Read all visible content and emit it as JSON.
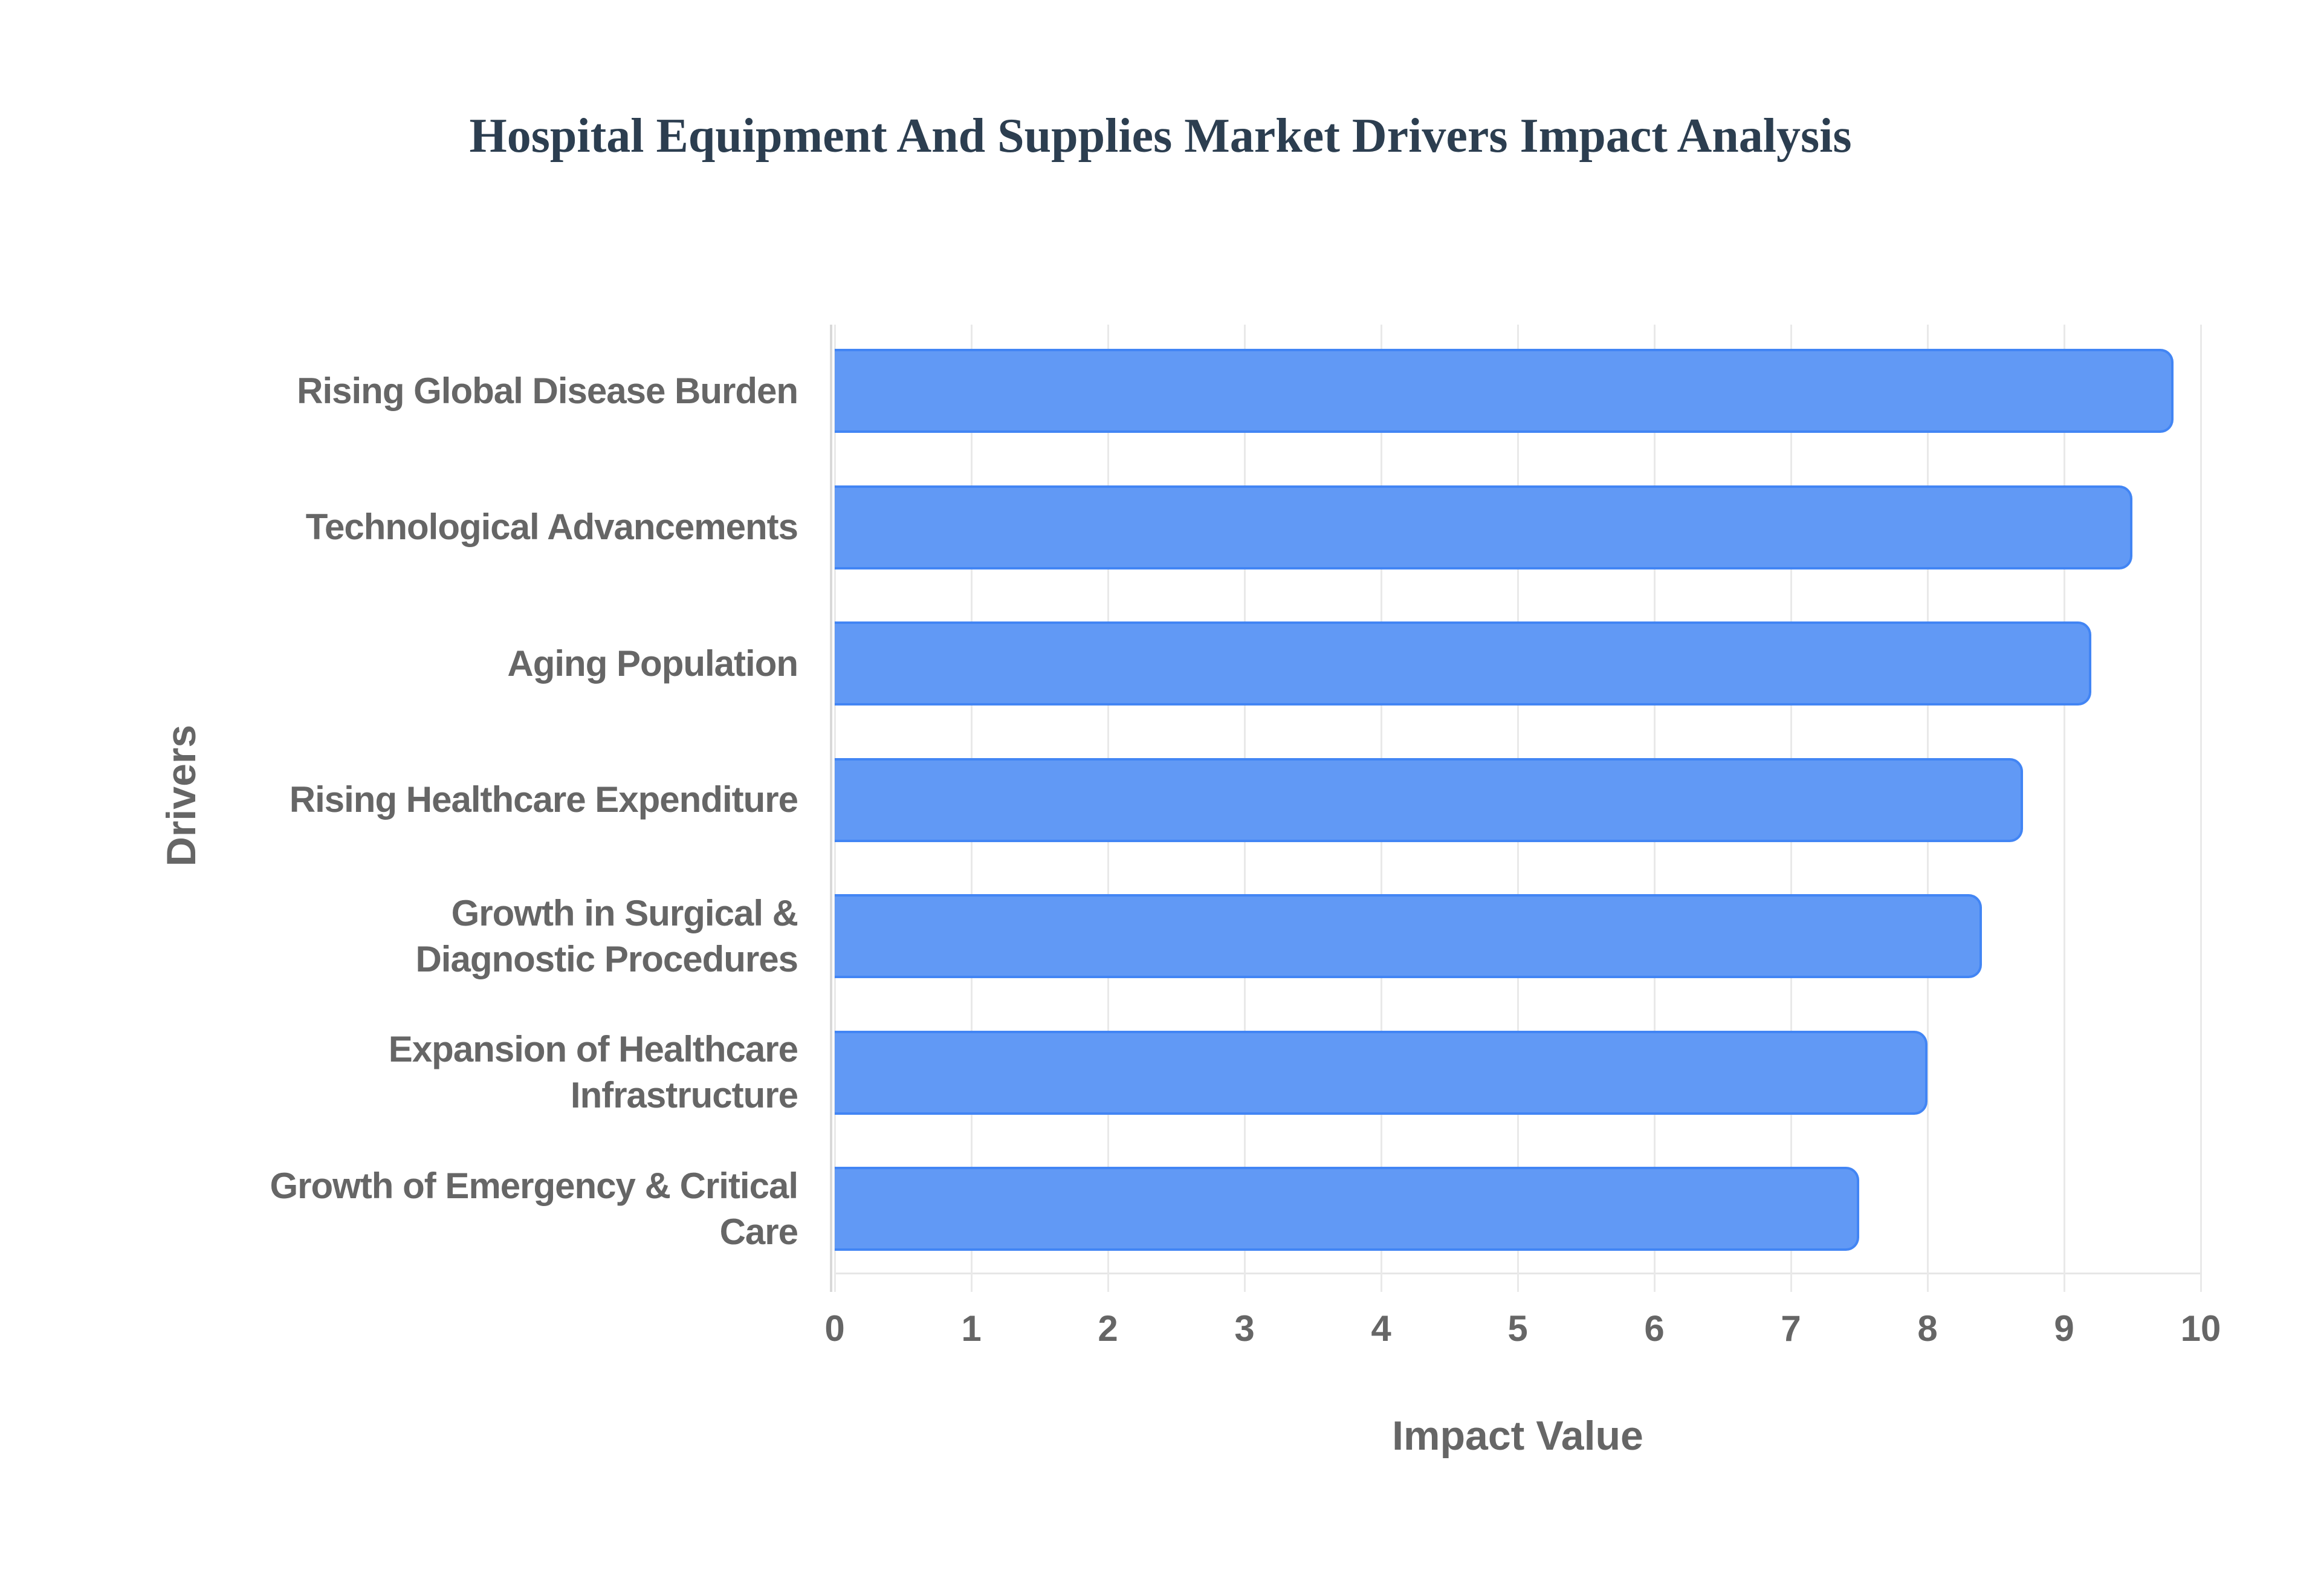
{
  "chart_data": {
    "type": "bar",
    "orientation": "horizontal",
    "title": "Hospital Equipment And Supplies Market Drivers Impact Analysis",
    "xlabel": "Impact Value",
    "ylabel": "Drivers",
    "xlim": [
      0,
      10
    ],
    "xticks": [
      "0",
      "1",
      "2",
      "3",
      "4",
      "5",
      "6",
      "7",
      "8",
      "9",
      "10"
    ],
    "grid": true,
    "legend": null,
    "categories": [
      "Rising Global Disease Burden",
      "Technological Advancements",
      "Aging Population",
      "Rising Healthcare Expenditure",
      "Growth in Surgical & Diagnostic Procedures",
      "Expansion of Healthcare Infrastructure",
      "Growth of Emergency & Critical Care"
    ],
    "category_lines": [
      [
        "Rising Global Disease Burden"
      ],
      [
        "Technological Advancements"
      ],
      [
        "Aging Population"
      ],
      [
        "Rising Healthcare Expenditure"
      ],
      [
        "Growth in Surgical &",
        "Diagnostic Procedures"
      ],
      [
        "Expansion of Healthcare",
        "Infrastructure"
      ],
      [
        "Growth of Emergency & Critical",
        "Care"
      ]
    ],
    "values": [
      9.8,
      9.5,
      9.2,
      8.7,
      8.4,
      8.0,
      7.5
    ],
    "colors": {
      "bar_fill": "#6199f5",
      "bar_border": "#4285f4",
      "title": "#2c3e50",
      "text": "#666666"
    }
  }
}
